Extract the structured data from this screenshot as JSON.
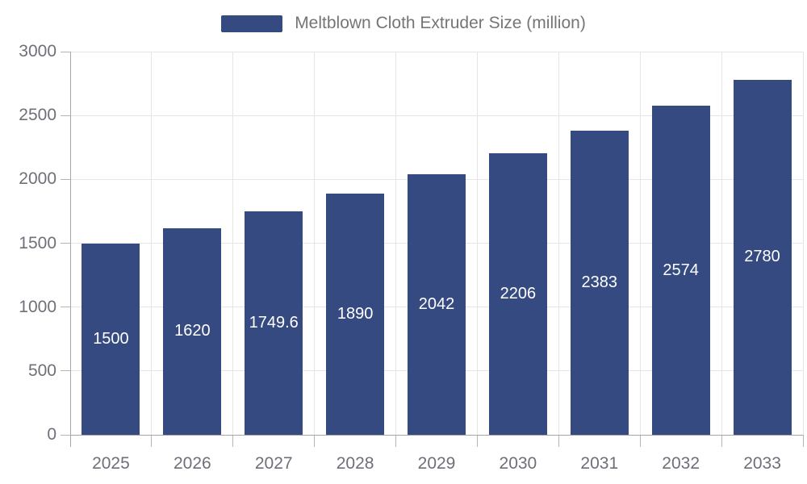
{
  "chart_data": {
    "type": "bar",
    "title": "Meltblown Cloth Extruder Size (million)",
    "legend": [
      "Meltblown Cloth Extruder Size (million)"
    ],
    "legend_position": "top",
    "categories": [
      "2025",
      "2026",
      "2027",
      "2028",
      "2029",
      "2030",
      "2031",
      "2032",
      "2033"
    ],
    "values": [
      1500,
      1620,
      1749.6,
      1890,
      2042,
      2206,
      2383,
      2574,
      2780
    ],
    "data_labels": [
      "1500",
      "1620",
      "1749.6",
      "1890",
      "2042",
      "2206",
      "2383",
      "2574",
      "2780"
    ],
    "xlabel": "",
    "ylabel": "",
    "ylim": [
      0,
      3000
    ],
    "y_ticks": [
      0,
      500,
      1000,
      1500,
      2000,
      2500,
      3000
    ],
    "grid": true,
    "colors": {
      "bar": "#354A80",
      "bar_value_label": "#ffffff",
      "axis_text": "#6E7079",
      "legend_text": "#757575",
      "gridline": "#e5e5e5",
      "axis_line": "#a6a6a6"
    }
  }
}
